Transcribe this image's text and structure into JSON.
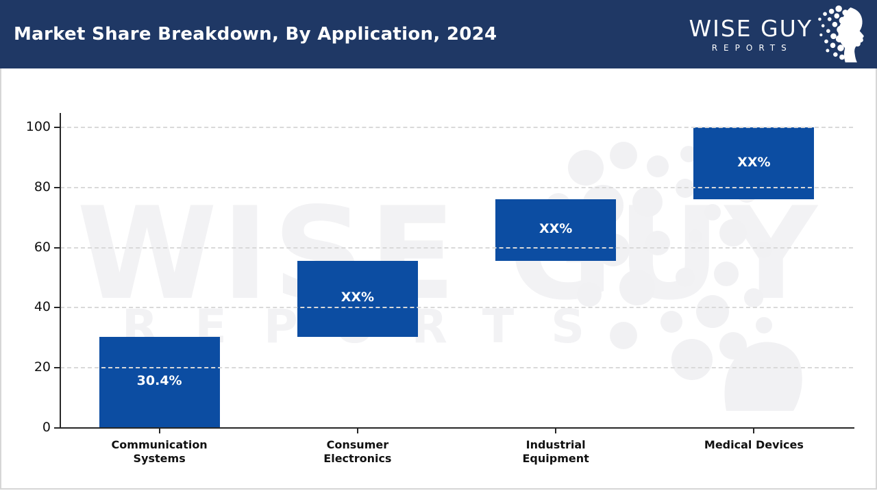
{
  "header": {
    "title": "Market Share Breakdown, By Application, 2024",
    "logo": {
      "line1": "WISE GUY",
      "line2": "REPORTS"
    }
  },
  "watermark": {
    "line1": "WISE GUY",
    "line2": "REPORTS"
  },
  "colors": {
    "header_bg": "#1f3865",
    "bar": "#0c4da2",
    "grid": "#d9d9d9",
    "axis": "#262626",
    "bar_label": "#ffffff",
    "watermark": "#f2f2f4"
  },
  "chart_data": {
    "type": "bar",
    "subtype": "waterfall",
    "title": "Market Share Breakdown, By Application, 2024",
    "categories": [
      "Communication Systems",
      "Consumer Electronics",
      "Industrial Equipment",
      "Medical Devices"
    ],
    "category_label_lines": [
      [
        "Communication",
        "Systems"
      ],
      [
        "Consumer",
        "Electronics"
      ],
      [
        "Industrial",
        "Equipment"
      ],
      [
        "Medical Devices"
      ]
    ],
    "bars": [
      {
        "label": "30.4%",
        "start": 0,
        "end": 30.4
      },
      {
        "label": "XX%",
        "start": 30.4,
        "end": 55.5
      },
      {
        "label": "XX%",
        "start": 55.5,
        "end": 76.0
      },
      {
        "label": "XX%",
        "start": 76.0,
        "end": 100.0
      }
    ],
    "xlabel": "",
    "ylabel": "",
    "ylim": [
      0,
      100
    ],
    "yticks": [
      0,
      20,
      40,
      60,
      80,
      100
    ],
    "grid": "horizontal-dashed-over-bars",
    "legend": false,
    "bar_color": "#0c4da2"
  }
}
